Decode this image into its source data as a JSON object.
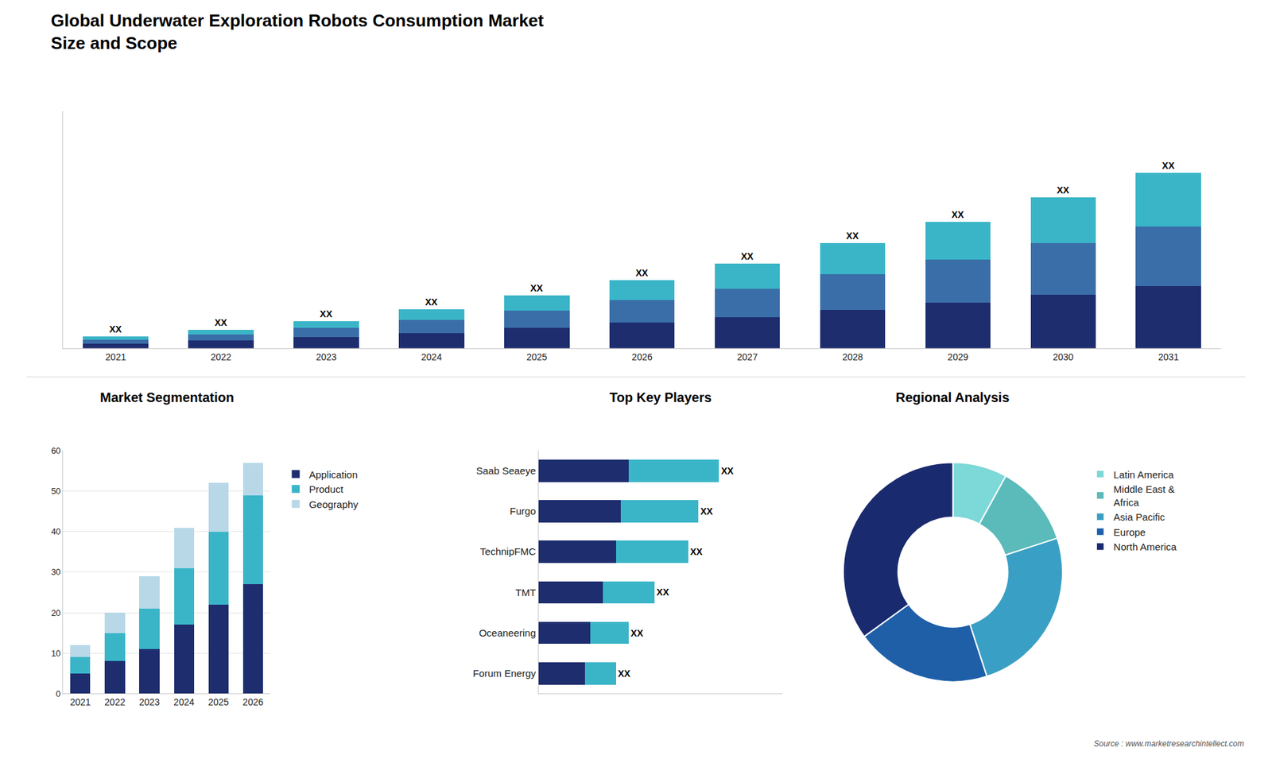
{
  "chart_data": [
    {
      "type": "bar",
      "stacked": true,
      "title": "Global Underwater Exploration Robots Consumption Market\nSize and Scope",
      "categories": [
        "2021",
        "2022",
        "2023",
        "2024",
        "2025",
        "2026",
        "2027",
        "2028",
        "2029",
        "2030",
        "2031"
      ],
      "series": [
        {
          "color": "#1e2d6e",
          "values": [
            1.0,
            1.6,
            2.3,
            3.2,
            4.2,
            5.3,
            6.5,
            8.0,
            9.5,
            11.2,
            13.0
          ]
        },
        {
          "color": "#3a6ea8",
          "values": [
            0.8,
            1.3,
            1.9,
            2.7,
            3.7,
            4.8,
            6.0,
            7.5,
            9.0,
            10.8,
            12.5
          ]
        },
        {
          "color": "#3ab5c8",
          "values": [
            0.6,
            1.0,
            1.5,
            2.2,
            3.1,
            4.1,
            5.2,
            6.5,
            8.0,
            9.5,
            11.2
          ],
          "value_labels": [
            "XX",
            "XX",
            "XX",
            "XX",
            "XX",
            "XX",
            "XX",
            "XX",
            "XX",
            "XX",
            "XX"
          ]
        }
      ],
      "ylim": [
        0,
        49.545
      ],
      "tick_labels": "x",
      "grid": false,
      "annotations": [
        "Source : www.marketresearchintellect.com"
      ]
    },
    {
      "type": "bar",
      "stacked": true,
      "title": "Market Segmentation",
      "categories": [
        "2021",
        "2022",
        "2023",
        "2024",
        "2025",
        "2026"
      ],
      "series": [
        {
          "name": "Application",
          "color": "#1e2d6e",
          "values": [
            5,
            8,
            11,
            17,
            22,
            27
          ]
        },
        {
          "name": "Product",
          "color": "#3ab5c8",
          "values": [
            4,
            7,
            10,
            14,
            18,
            22
          ]
        },
        {
          "name": "Geography",
          "color": "#b8d8e8",
          "values": [
            3,
            5,
            8,
            10,
            12,
            8
          ]
        }
      ],
      "ylim": [
        0,
        60
      ],
      "yticks": [
        0,
        10,
        20,
        30,
        40,
        50,
        60
      ],
      "grid": true,
      "legend": "right"
    },
    {
      "type": "bar",
      "orientation": "horizontal",
      "stacked": true,
      "title": "Top Key Players",
      "categories": [
        "Saab Seaeye",
        "Furgo",
        "TechnipFMC",
        "TMT",
        "Oceaneering",
        "Forum Energy"
      ],
      "series": [
        {
          "color": "#1e2d6e",
          "values": [
            3.5,
            3.2,
            3.0,
            2.5,
            2.0,
            1.8
          ]
        },
        {
          "color": "#3ab5c8",
          "values": [
            3.5,
            3.0,
            2.8,
            2.0,
            1.5,
            1.2
          ],
          "value_labels": [
            "XX",
            "XX",
            "XX",
            "XX",
            "XX",
            "XX"
          ]
        }
      ],
      "xlim": [
        0,
        9.45
      ],
      "tick_labels": "y",
      "grid": false
    },
    {
      "type": "donut",
      "title": "Regional Analysis",
      "categories": [
        "Latin America",
        "Middle East &\nAfrica",
        "Asia Pacific",
        "Europe",
        "North America"
      ],
      "values": [
        8,
        12,
        25,
        20,
        35
      ],
      "colors": [
        "#7dd8d8",
        "#5bbaba",
        "#3a9fc4",
        "#1e5fa8",
        "#1a2a6e"
      ],
      "legend": "right"
    }
  ]
}
